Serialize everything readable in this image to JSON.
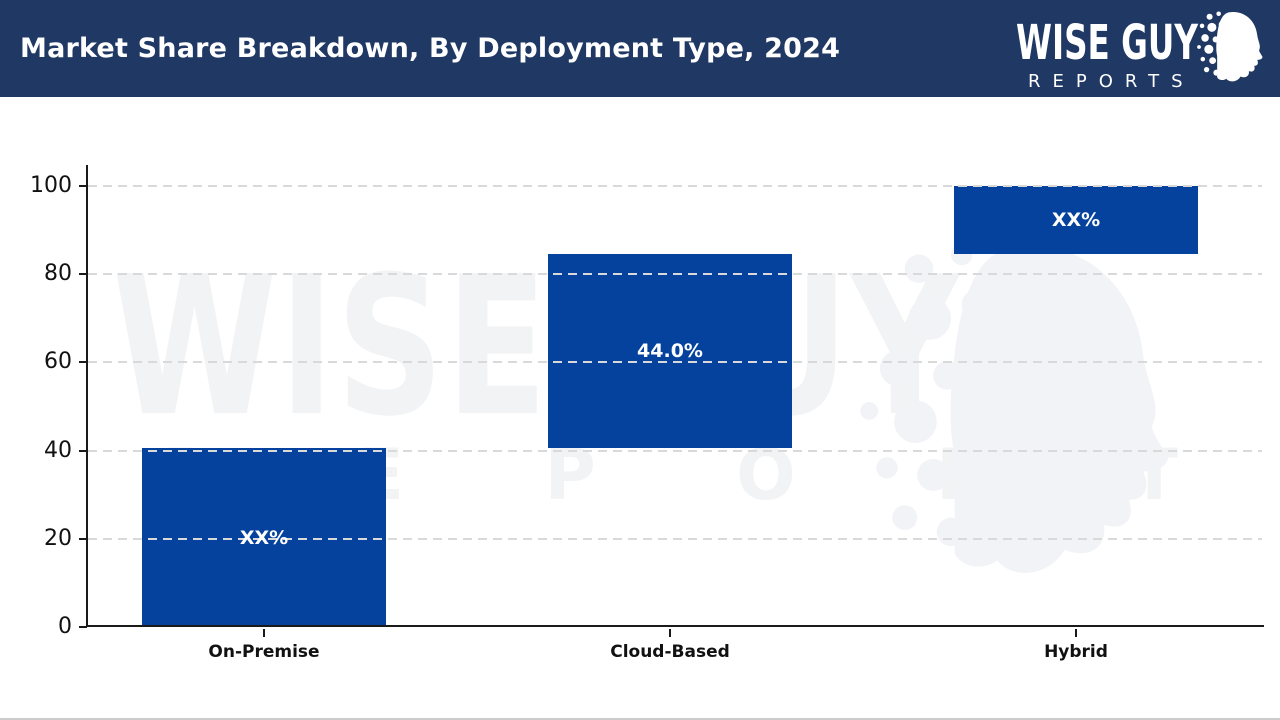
{
  "header": {
    "title": "Market Share Breakdown, By Deployment Type, 2024",
    "logo": {
      "name": "WISE GUY",
      "sub": "REPORTS",
      "icon": "dotted-head-profile-icon"
    }
  },
  "chart_data": {
    "type": "bar",
    "variant": "floating-segment-waterfall",
    "title": "Market Share Breakdown, By Deployment Type, 2024",
    "xlabel": "",
    "ylabel": "",
    "categories": [
      "On-Premise",
      "Cloud-Based",
      "Hybrid"
    ],
    "segments": [
      {
        "category": "On-Premise",
        "from": 0,
        "to": 40.5,
        "label": "XX%"
      },
      {
        "category": "Cloud-Based",
        "from": 40.5,
        "to": 84.5,
        "label": "44.0%"
      },
      {
        "category": "Hybrid",
        "from": 84.5,
        "to": 100,
        "label": "XX%"
      }
    ],
    "yticks": [
      0,
      20,
      40,
      60,
      80,
      100
    ],
    "ylim": [
      0,
      104.8
    ],
    "grid": "dashed horizontal gridlines drawn over bars",
    "legend": "none",
    "bar_color": "#04429e",
    "bar_label_color": "#ffffff"
  },
  "watermark": {
    "line1": "WISE GUY",
    "line2": "R E P O R T S",
    "icon": "dotted-head-profile-watermark"
  },
  "colors": {
    "header_bg": "#1f3864",
    "bar": "#04429e",
    "grid": "#d9d9d9",
    "axis": "#1a1a1a",
    "watermark": "#f2f3f5",
    "footer_line": "#cccccc"
  }
}
